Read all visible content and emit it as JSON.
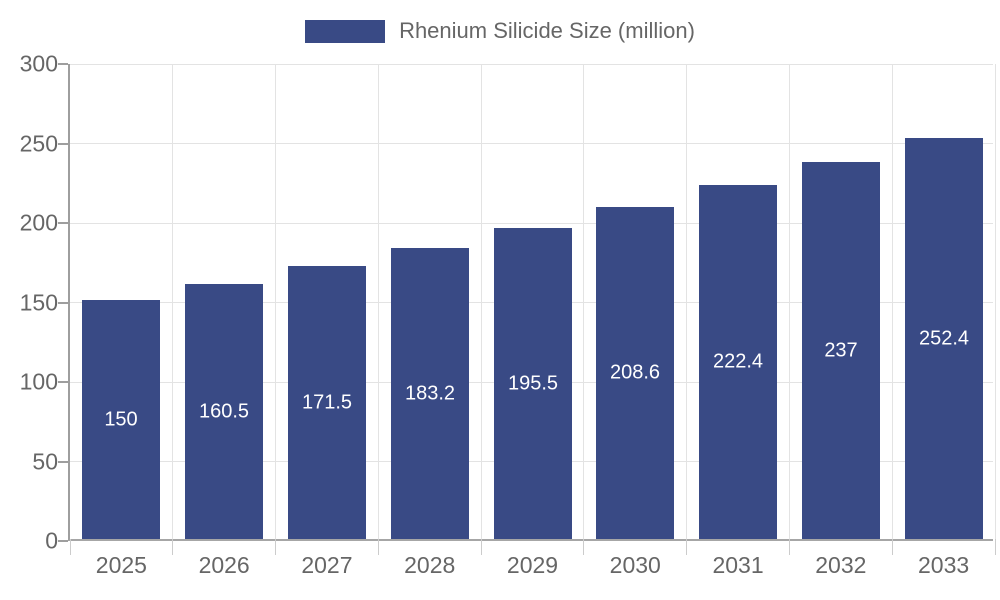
{
  "chart_data": {
    "type": "bar",
    "title": "Rhenium Silicide Size (million)",
    "categories": [
      "2025",
      "2026",
      "2027",
      "2028",
      "2029",
      "2030",
      "2031",
      "2032",
      "2033"
    ],
    "series": [
      {
        "name": "Rhenium Silicide Size (million)",
        "values": [
          150,
          160.5,
          171.5,
          183.2,
          195.5,
          208.6,
          222.4,
          237,
          252.4
        ],
        "color": "#394A85"
      }
    ],
    "value_labels": [
      "150",
      "160.5",
      "171.5",
      "183.2",
      "195.5",
      "208.6",
      "222.4",
      "237",
      "252.4"
    ],
    "xlabel": "",
    "ylabel": "",
    "ylim": [
      0,
      300
    ],
    "yticks": [
      0,
      50,
      100,
      150,
      200,
      250,
      300
    ],
    "grid": true,
    "legend_position": "top"
  },
  "colors": {
    "bar": "#394A85",
    "bar_value_text": "#FFFFFF",
    "axis_line": "#9E9E9E",
    "grid_line": "#E3E3E3",
    "tick_line": "#CCCCCC",
    "axis_label_text": "#666666",
    "legend_text": "#666666",
    "background": "#FFFFFF"
  }
}
